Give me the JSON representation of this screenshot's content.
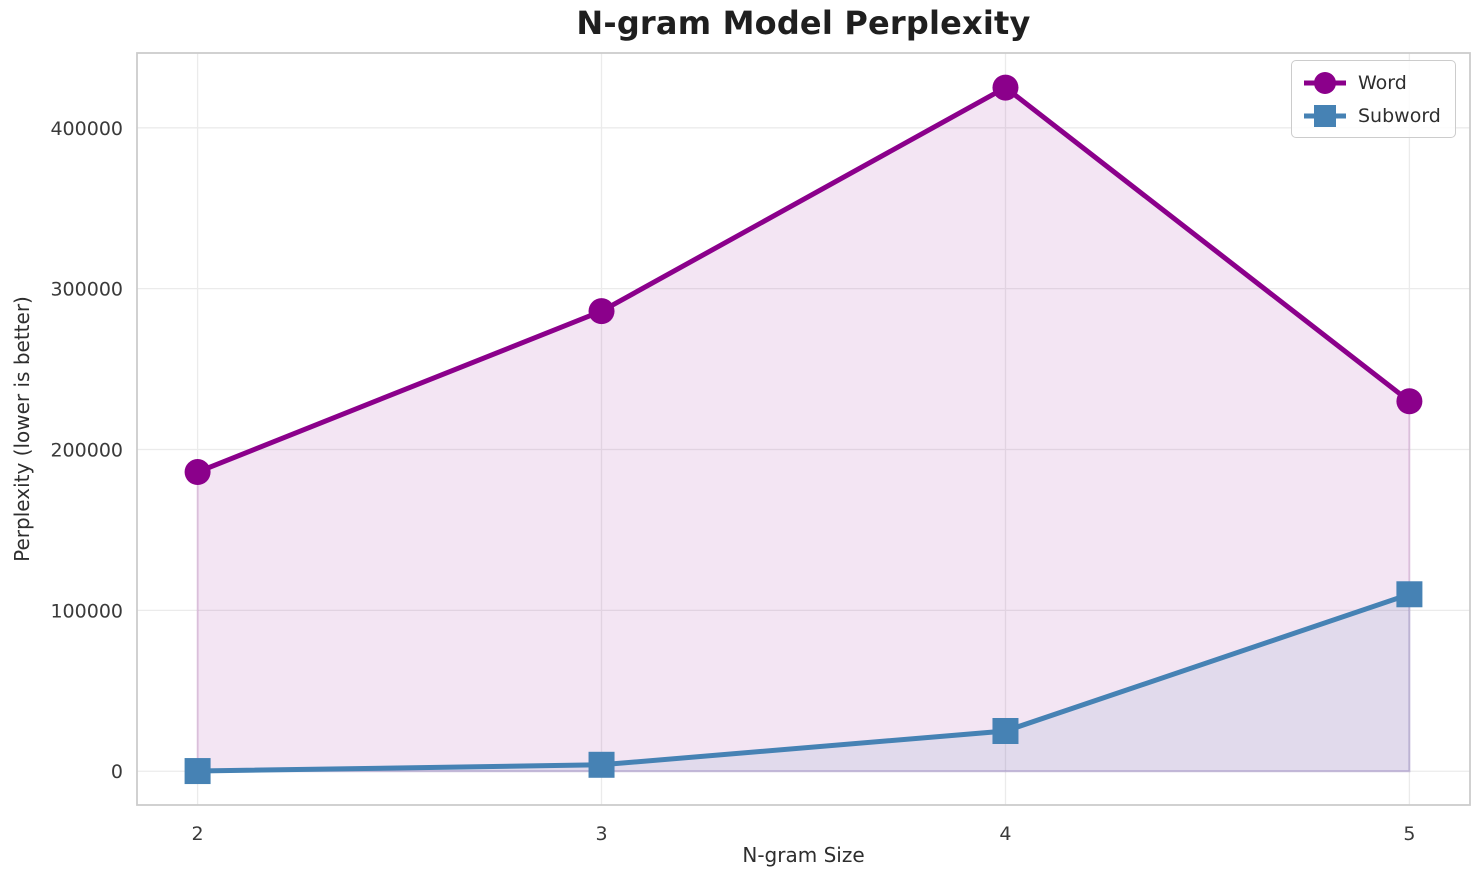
{
  "chart_data": {
    "type": "line",
    "title": "N-gram Model Perplexity",
    "xlabel": "N-gram Size",
    "ylabel": "Perplexity (lower is better)",
    "x": [
      2,
      3,
      4,
      5
    ],
    "series": [
      {
        "name": "Word",
        "color": "#8B008B",
        "marker": "circle",
        "values": [
          186000,
          286000,
          425000,
          230000
        ]
      },
      {
        "name": "Subword",
        "color": "#4682B4",
        "marker": "square",
        "values": [
          100,
          4000,
          25000,
          110000
        ]
      }
    ],
    "x_ticks": [
      2,
      3,
      4,
      5
    ],
    "y_ticks": [
      0,
      100000,
      200000,
      300000,
      400000
    ],
    "xlim": [
      1.85,
      5.15
    ],
    "ylim": [
      -21000,
      446500
    ],
    "grid": true,
    "area_fill": true,
    "fill_alpha": 0.1,
    "legend_position": "upper right"
  }
}
